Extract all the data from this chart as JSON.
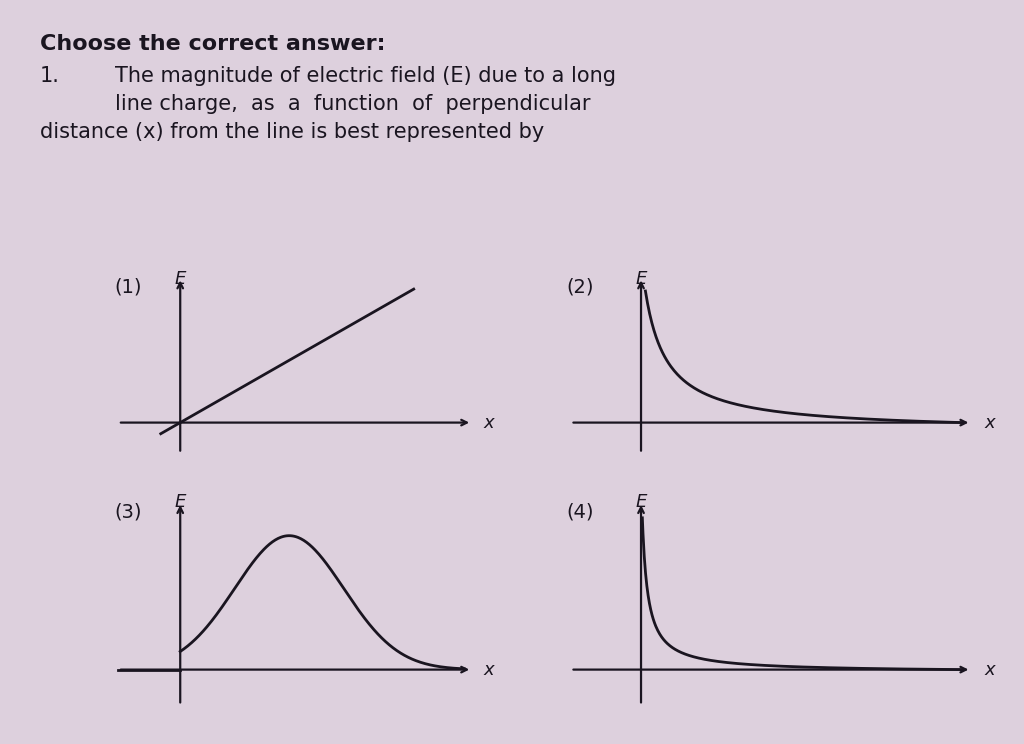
{
  "bg_color": "#ddd0dd",
  "text_color": "#1a1520",
  "curve_color": "#1a1520",
  "title": "Choose the correct answer:",
  "q_number": "1.",
  "q_line1": "The magnitude of electric field (E) due to a long",
  "q_line2": "line charge,  as  a  function  of  perpendicular",
  "q_line3": "distance (x) from the line is best represented by",
  "graph_labels": [
    "(1)",
    "(2)",
    "(3)",
    "(4)"
  ],
  "axis_E": "E",
  "axis_x": "x",
  "title_fontsize": 16,
  "q_fontsize": 15,
  "label_fontsize": 14
}
